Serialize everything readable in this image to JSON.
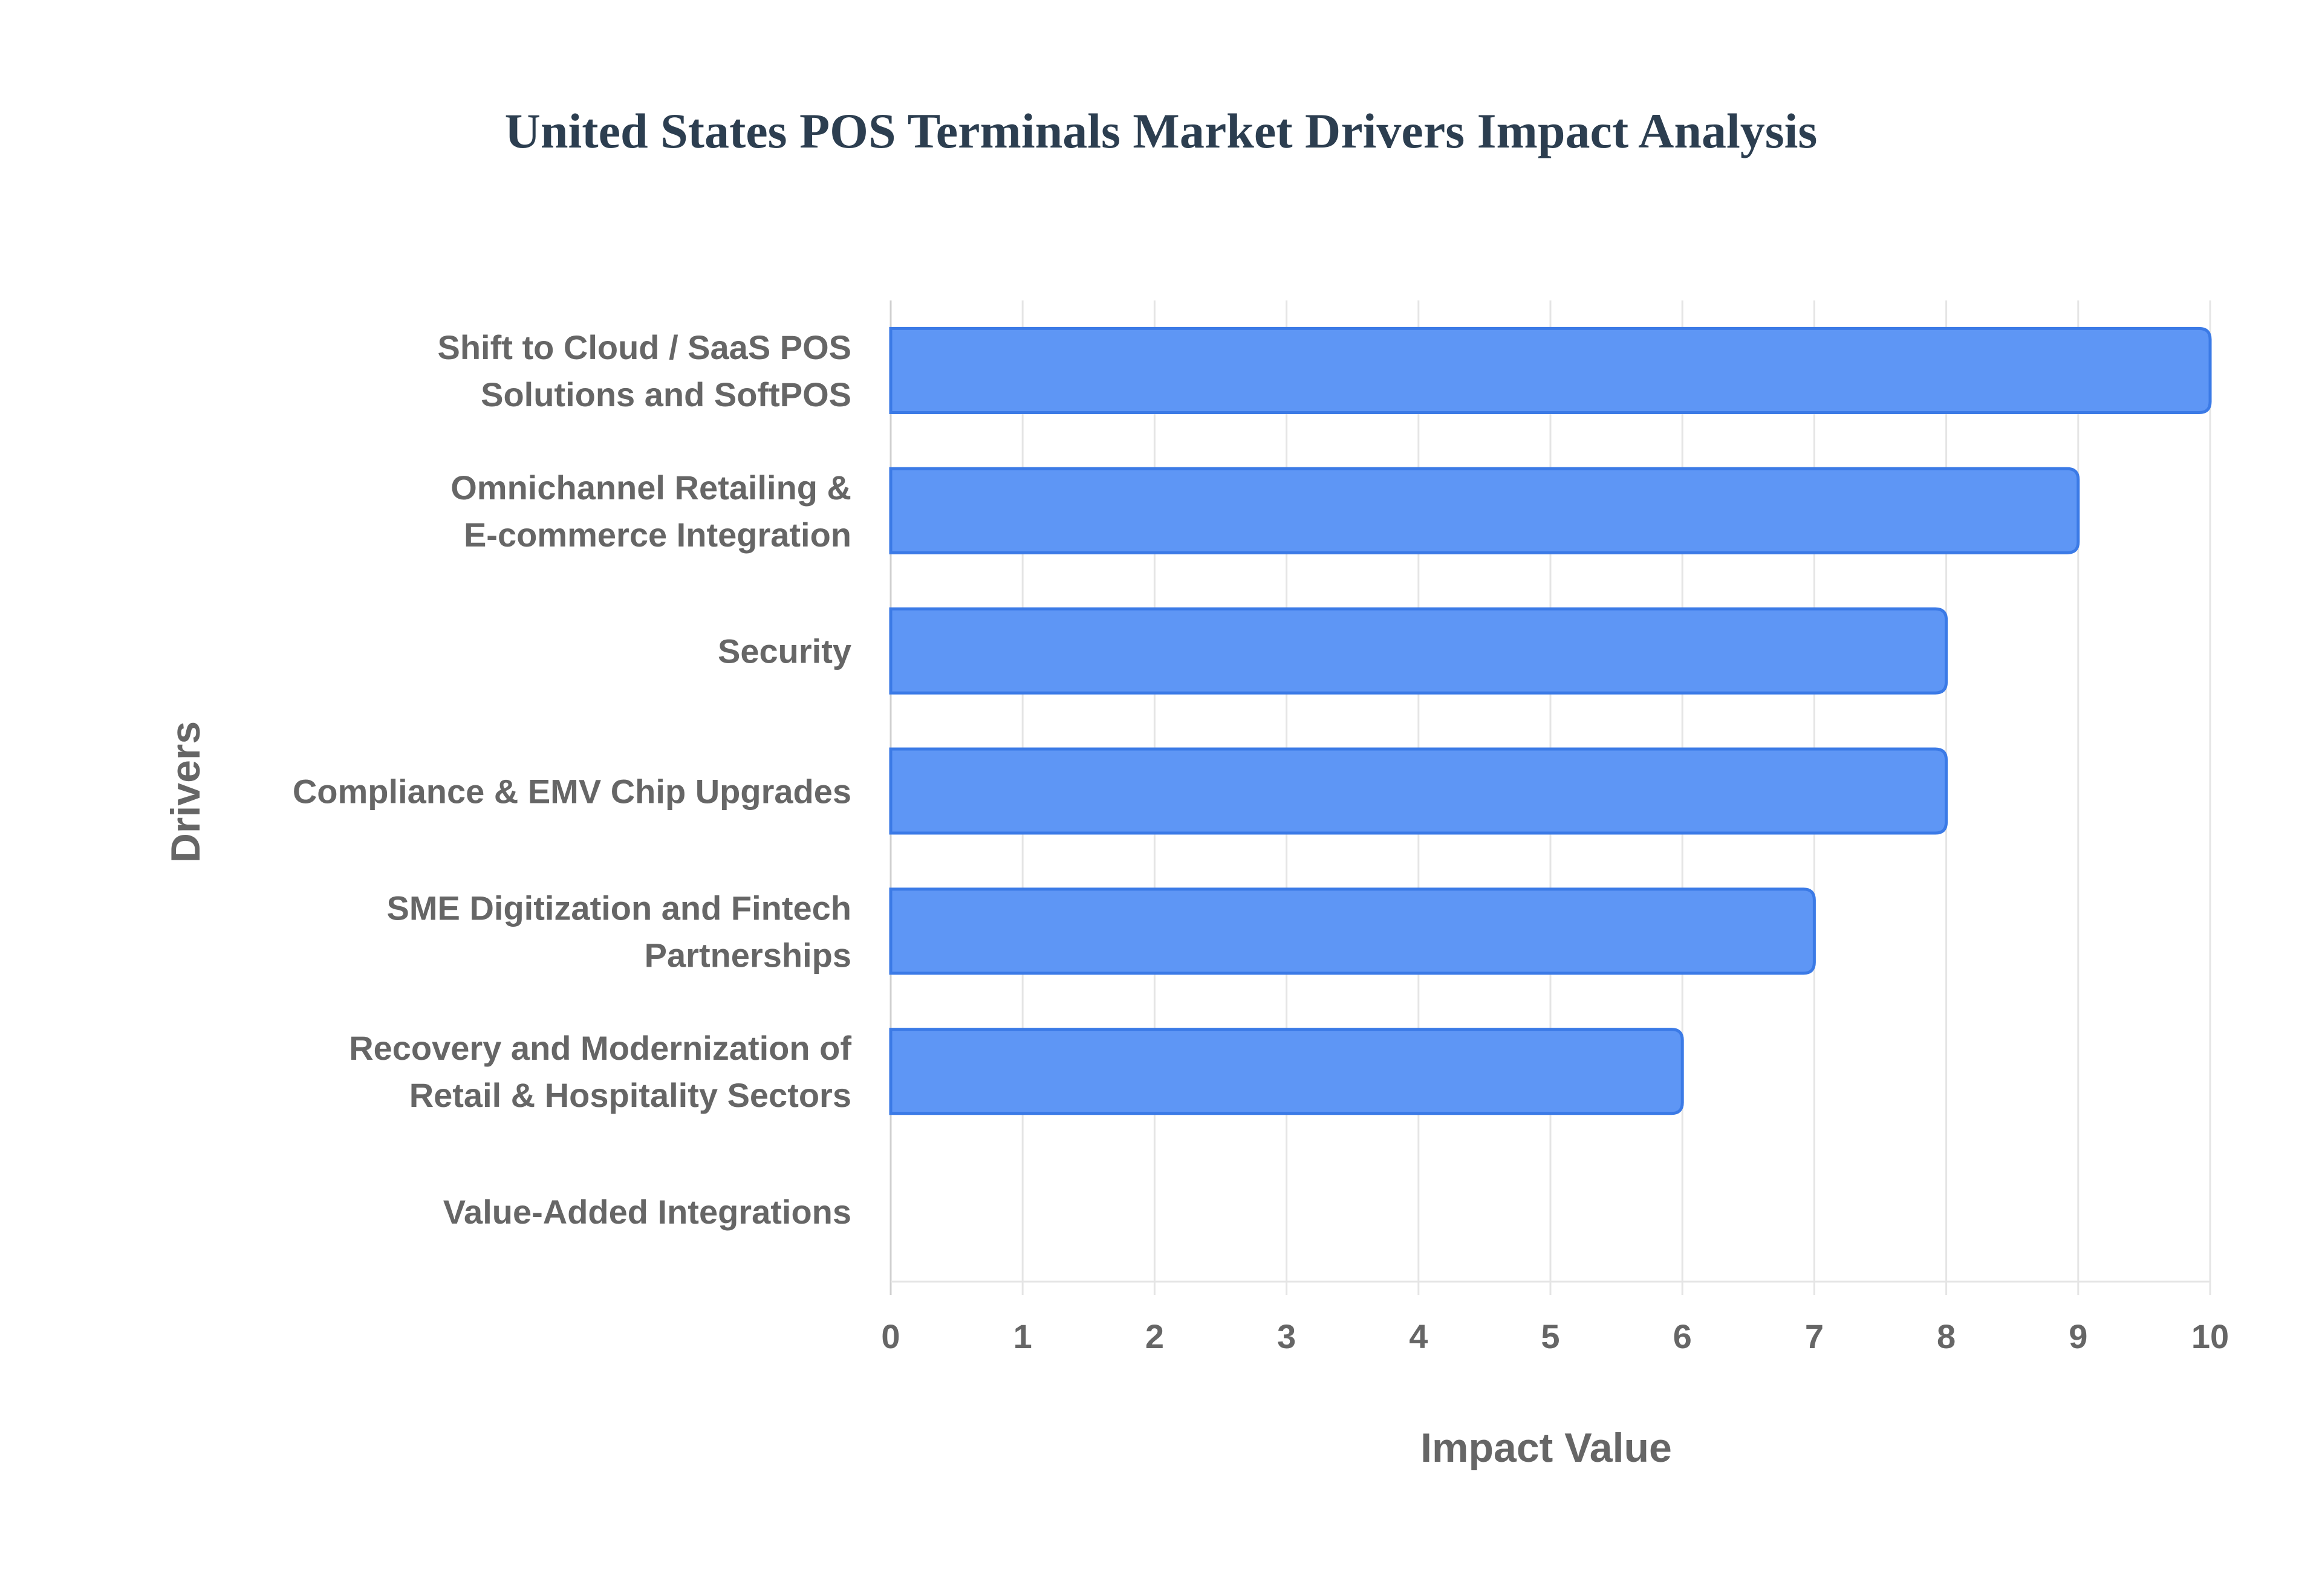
{
  "chart_data": {
    "type": "bar",
    "orientation": "horizontal",
    "title": "United States POS Terminals Market Drivers Impact Analysis",
    "xlabel": "Impact Value",
    "ylabel": "Drivers",
    "categories": [
      [
        "Shift to Cloud / SaaS POS",
        "Solutions and SoftPOS"
      ],
      [
        "Omnichannel Retailing &",
        "E-commerce Integration"
      ],
      [
        "Security"
      ],
      [
        "Compliance & EMV Chip Upgrades"
      ],
      [
        "SME Digitization and Fintech",
        "Partnerships"
      ],
      [
        "Recovery and Modernization of",
        "Retail & Hospitality Sectors"
      ],
      [
        "Value-Added Integrations"
      ]
    ],
    "values": [
      10,
      9,
      8,
      8,
      7,
      6,
      0
    ],
    "xlim": [
      0,
      10
    ],
    "xticks": [
      "0",
      "1",
      "2",
      "3",
      "4",
      "5",
      "6",
      "7",
      "8",
      "9",
      "10"
    ],
    "grid": true,
    "colors": {
      "bar_fill": "#5e96f5",
      "bar_stroke": "#3b7ae6",
      "grid": "#e5e5e5",
      "text": "#666666",
      "title": "#2c3e50"
    }
  }
}
